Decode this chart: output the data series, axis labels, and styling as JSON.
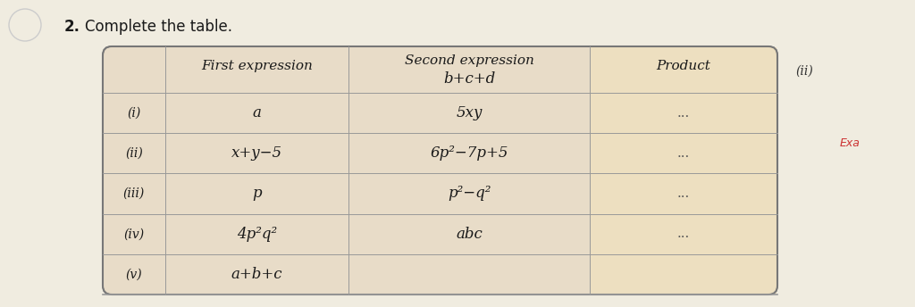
{
  "title_num": "2.",
  "title_text": "Complete the table.",
  "header_row": [
    "",
    "First expression",
    "Second expression",
    "Product"
  ],
  "header_sub": "b+c+d",
  "rows": [
    [
      "(i)",
      "a",
      "5xy",
      "..."
    ],
    [
      "(ii)",
      "x+y−5",
      "6p²−7p+5",
      "..."
    ],
    [
      "(iii)",
      "p",
      "p²−q²",
      "..."
    ],
    [
      "(iv)",
      "4p²q²",
      "abc",
      "..."
    ],
    [
      "(v)",
      "a+b+c",
      "",
      ""
    ]
  ],
  "page_bg": "#f0ece0",
  "table_bg": "#e8dcc8",
  "product_bg": "#eddfc0",
  "text_dark": "#1a1a1a",
  "border_col": "#999999",
  "title_fs": 12,
  "header_fs": 11,
  "cell_fs": 12,
  "label_fs": 10
}
